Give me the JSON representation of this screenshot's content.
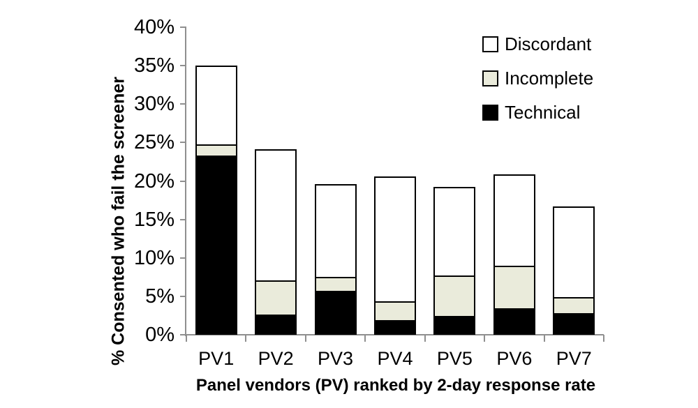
{
  "figure": {
    "background": "#ffffff",
    "axis_color": "#8f8f8f",
    "bar_border_color": "#000000"
  },
  "chart_data": {
    "type": "bar",
    "stacked": true,
    "title": "",
    "xlabel": "Panel vendors (PV) ranked by 2-day response rate",
    "ylabel": "% Consented who fail the screener",
    "categories": [
      "PV1",
      "PV2",
      "PV3",
      "PV4",
      "PV5",
      "PV6",
      "PV7"
    ],
    "series": [
      {
        "name": "Technical",
        "color": "#000000",
        "values": [
          23.2,
          2.5,
          5.6,
          1.8,
          2.4,
          3.4,
          2.7
        ]
      },
      {
        "name": "Incomplete",
        "color": "#EAEBDB",
        "values": [
          1.5,
          4.5,
          1.8,
          2.5,
          5.2,
          5.5,
          2.1
        ]
      },
      {
        "name": "Discordant",
        "color": "#FFFFFF",
        "values": [
          10.3,
          17.1,
          12.2,
          16.3,
          11.6,
          12.0,
          11.9
        ]
      }
    ],
    "totals": [
      35.0,
      24.1,
      19.6,
      20.6,
      19.2,
      20.9,
      16.7
    ],
    "ylim": [
      0,
      40
    ],
    "ytick_step": 5,
    "ytick_labels": [
      "40%",
      "35%",
      "30%",
      "25%",
      "20%",
      "15%",
      "10%",
      "5%",
      "0%"
    ],
    "grid": false,
    "legend": {
      "position": "top-right",
      "items": [
        {
          "label": "Discordant",
          "fill": "#FFFFFF"
        },
        {
          "label": "Incomplete",
          "fill": "#EAEBDB"
        },
        {
          "label": "Technical",
          "fill": "#000000"
        }
      ]
    }
  }
}
